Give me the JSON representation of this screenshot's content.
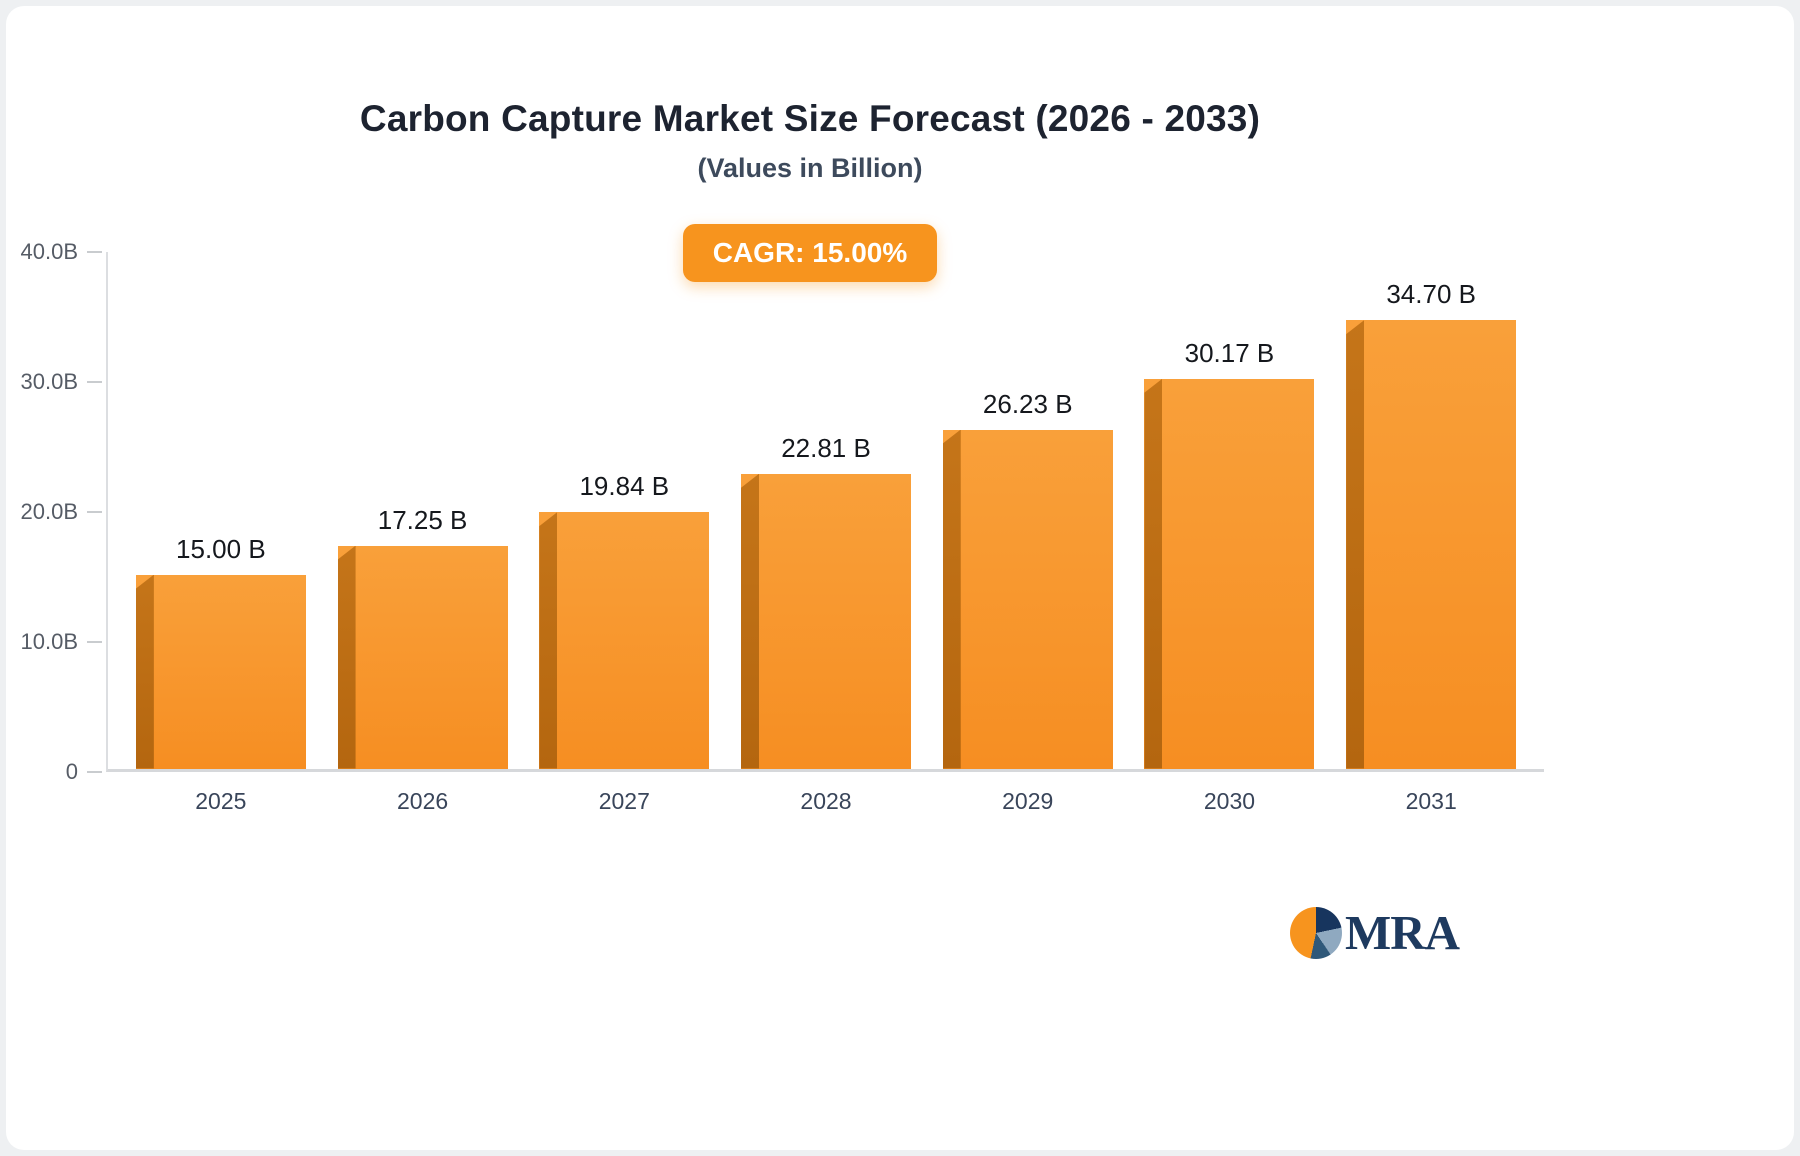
{
  "chart_data": {
    "type": "bar",
    "title": "Carbon Capture Market Size Forecast (2026 - 2033)",
    "subtitle": "(Values in Billion)",
    "categories": [
      "2025",
      "2026",
      "2027",
      "2028",
      "2029",
      "2030",
      "2031"
    ],
    "values": [
      15.0,
      17.25,
      19.84,
      22.81,
      26.23,
      30.17,
      34.7
    ],
    "bar_labels": [
      "15.00 B",
      "17.25 B",
      "19.84 B",
      "22.81 B",
      "26.23 B",
      "30.17 B",
      "34.70 B"
    ],
    "annotations": [
      "CAGR: 15.00%"
    ],
    "xlabel": "",
    "ylabel": "",
    "ylim": [
      0,
      40
    ],
    "yticks": [
      0,
      10,
      20,
      30,
      40
    ],
    "ytick_labels": [
      "0",
      "10.0B",
      "20.0B",
      "30.0B",
      "40.0B"
    ],
    "grid": false,
    "legend": false,
    "colors": {
      "bar_face": "#F7941E",
      "bar_side": "#BE6E1A",
      "badge_background": "#F7941E",
      "axis_line": "#D8D8D8",
      "title_text": "#1D2330",
      "logo_navy": "#1E3A5F"
    }
  },
  "logo": {
    "text": "MRA"
  }
}
